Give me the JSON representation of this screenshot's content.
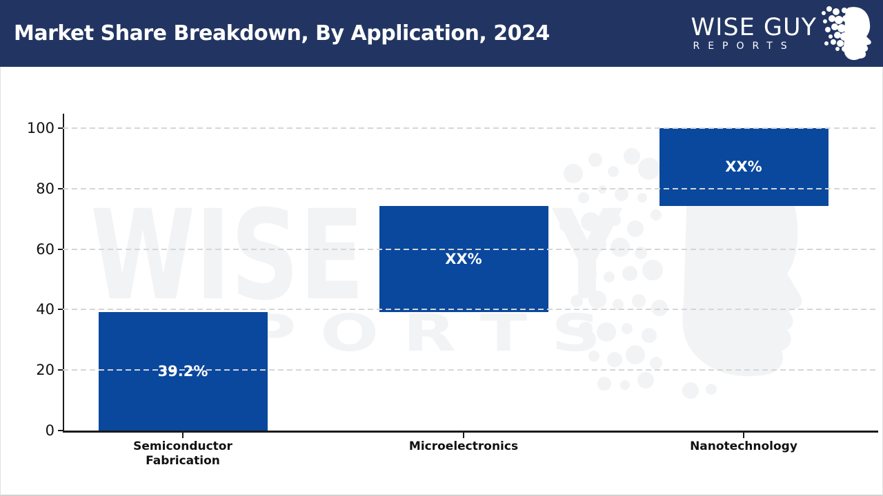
{
  "header": {
    "title": "Market Share Breakdown, By Application, 2024",
    "logo": {
      "line1": "WISE GUY",
      "line2": "REPORTS"
    }
  },
  "watermark": {
    "line1": "WISE GUY",
    "line2": "R E P O R T S"
  },
  "colors": {
    "header_bg": "#223562",
    "bar": "#0a489d",
    "bar_label": "#ffffff",
    "grid": "#d6d6d6",
    "axis": "#1a1a1a",
    "watermark": "#f2f3f5"
  },
  "chart_data": {
    "type": "bar",
    "subtype": "waterfall",
    "title": "Market Share Breakdown, By Application, 2024",
    "xlabel": "",
    "ylabel": "",
    "ylim": [
      0,
      100
    ],
    "yticks": [
      0,
      20,
      40,
      60,
      80,
      100
    ],
    "grid": true,
    "legend": false,
    "categories": [
      "Semiconductor\nFabrication",
      "Microelectronics",
      "Nanotechnology"
    ],
    "segments": [
      {
        "category": "Semiconductor\nFabrication",
        "start": 0,
        "end": 39.2,
        "value": 39.2,
        "label": "39.2%"
      },
      {
        "category": "Microelectronics",
        "start": 39.2,
        "end": 74.3,
        "value": 35.1,
        "label": "XX%"
      },
      {
        "category": "Nanotechnology",
        "start": 74.3,
        "end": 100,
        "value": 25.7,
        "label": "XX%"
      }
    ]
  }
}
